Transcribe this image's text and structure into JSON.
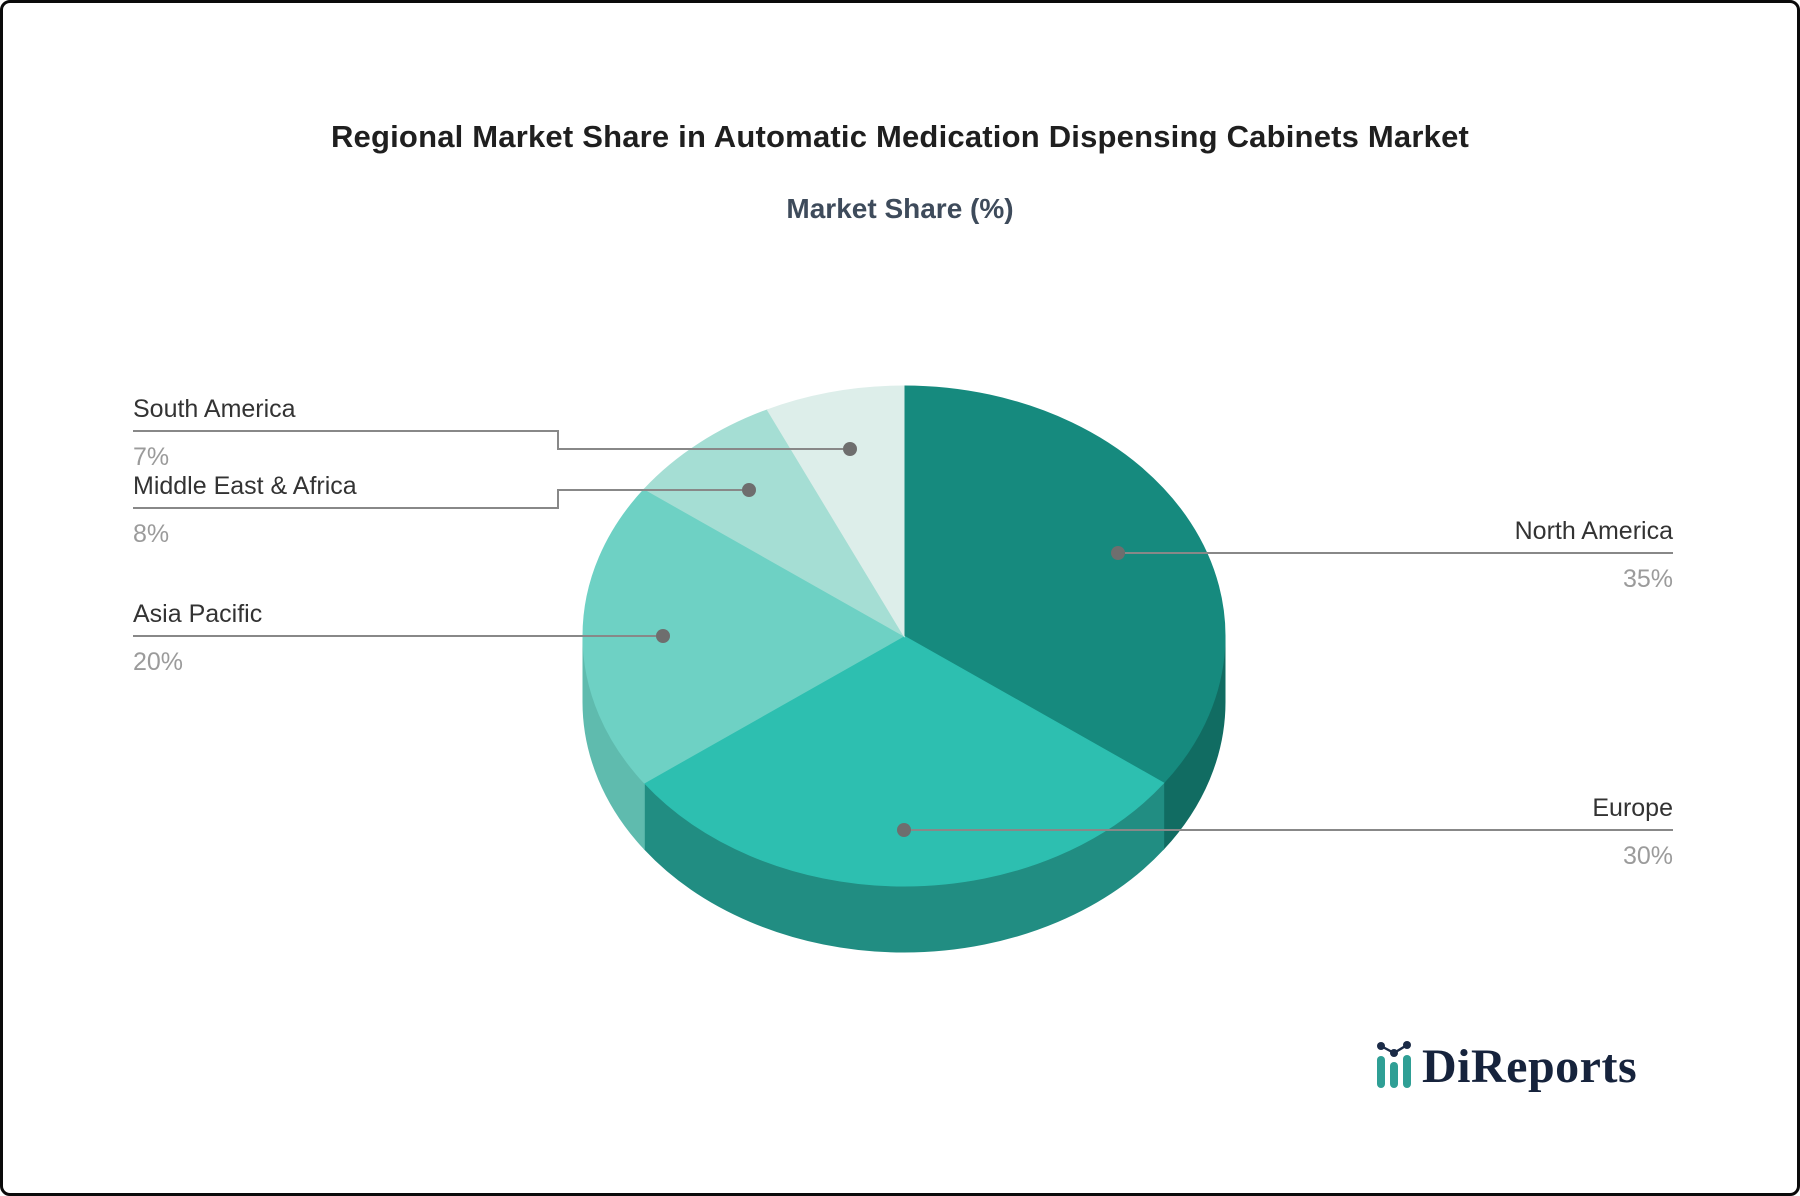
{
  "title": "Regional Market Share in Automatic Medication Dispensing Cabinets Market",
  "subtitle": "Market Share (%)",
  "chart_data": {
    "type": "pie",
    "title": "Regional Market Share in Automatic Medication Dispensing Cabinets Market",
    "subtitle": "Market Share (%)",
    "unit": "%",
    "effect": "3d",
    "start_angle": "12 o'clock, clockwise",
    "legend_position": "callout labels with leader lines",
    "slices": [
      {
        "label": "North America",
        "value": 35,
        "pct_label": "35%",
        "color": "#168a7e",
        "side_color": "#116c62"
      },
      {
        "label": "Europe",
        "value": 30,
        "pct_label": "30%",
        "color": "#2dbfb0",
        "side_color": "#218d82"
      },
      {
        "label": "Asia Pacific",
        "value": 20,
        "pct_label": "20%",
        "color": "#6ed1c4",
        "side_color": "#5fbbae"
      },
      {
        "label": "Middle East & Africa",
        "value": 8,
        "pct_label": "8%",
        "color": "#a5ded4",
        "side_color": "#8cc9c0"
      },
      {
        "label": "South America",
        "value": 7,
        "pct_label": "7%",
        "color": "#ddeeea",
        "side_color": "#c2ddd8"
      }
    ],
    "leader_line_color": "#888888",
    "leader_dot_color": "#6e6e6e"
  },
  "logo": {
    "text": "DiReports",
    "icon": "bar-line-chart-icon",
    "text_color": "#16233c",
    "accent_color": "#2f9f95"
  }
}
